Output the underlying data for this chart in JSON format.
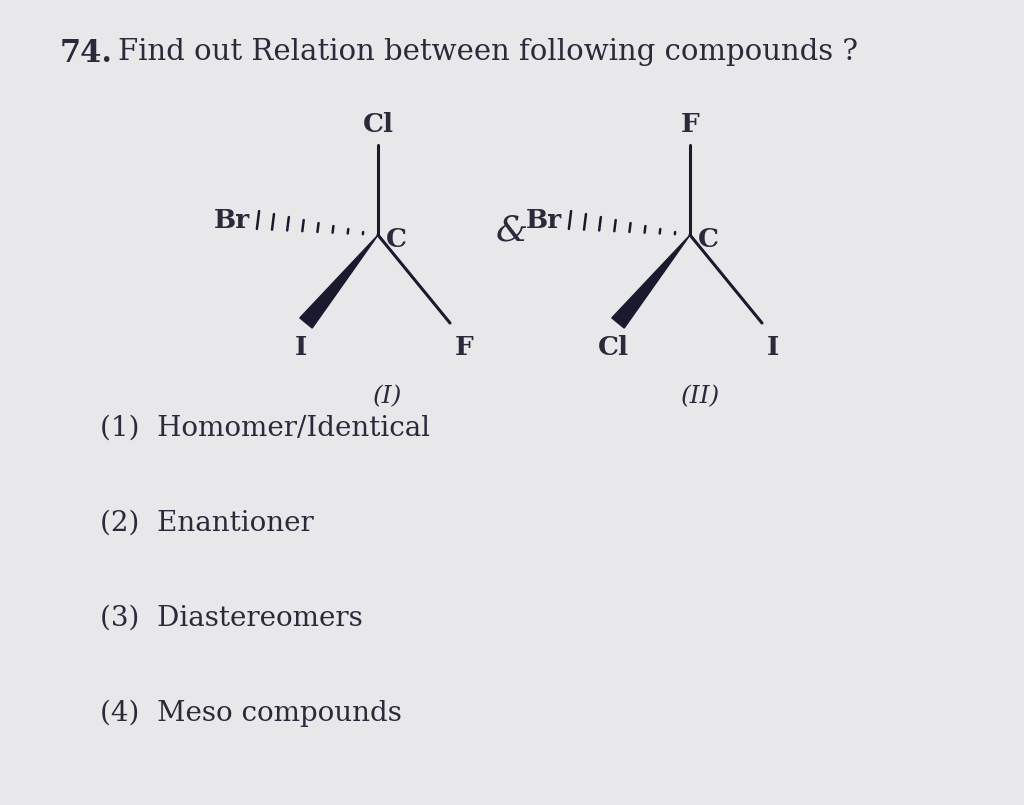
{
  "title_number": "74.",
  "title_text": "Find out Relation between following compounds ?",
  "background_color": "#e8e8ea",
  "text_color": "#2a2a3a",
  "options": [
    "(1)  Homomer/Identical",
    "(2)  Enantioner",
    "(3)  Diastereomers",
    "(4)  Meso compounds"
  ],
  "compound1_label": "(I)",
  "compound2_label": "(II)",
  "ampersand": "&",
  "font_size_title_num": 22,
  "font_size_title": 21,
  "font_size_options": 20,
  "font_size_atoms": 19,
  "font_size_label": 18
}
